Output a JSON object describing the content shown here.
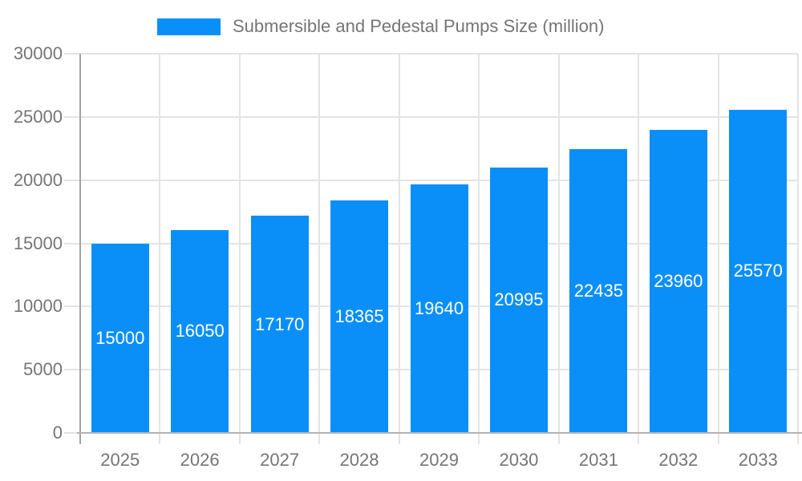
{
  "chart_data": {
    "type": "bar",
    "title": "Submersible and Pedestal Pumps Size (million)",
    "legend": "Submersible and Pedestal Pumps Size (million)",
    "legend_position": "top",
    "categories": [
      "2025",
      "2026",
      "2027",
      "2028",
      "2029",
      "2030",
      "2031",
      "2032",
      "2033"
    ],
    "values": [
      15000,
      16050,
      17170,
      18365,
      19640,
      20995,
      22435,
      23960,
      25570
    ],
    "xlabel": "",
    "ylabel": "",
    "ylim": [
      0,
      30000
    ],
    "y_ticks": [
      0,
      5000,
      10000,
      15000,
      20000,
      25000,
      30000
    ],
    "grid": "on",
    "colors": {
      "bar": "#0a8ff8",
      "bar_value_text": "#ffffff",
      "axis_text": "#757575",
      "gridline": "#e4e4e4",
      "y_axis_line": "#a3a3a3",
      "x_axis_line": "#b3b3b3",
      "background": "#ffffff"
    }
  }
}
